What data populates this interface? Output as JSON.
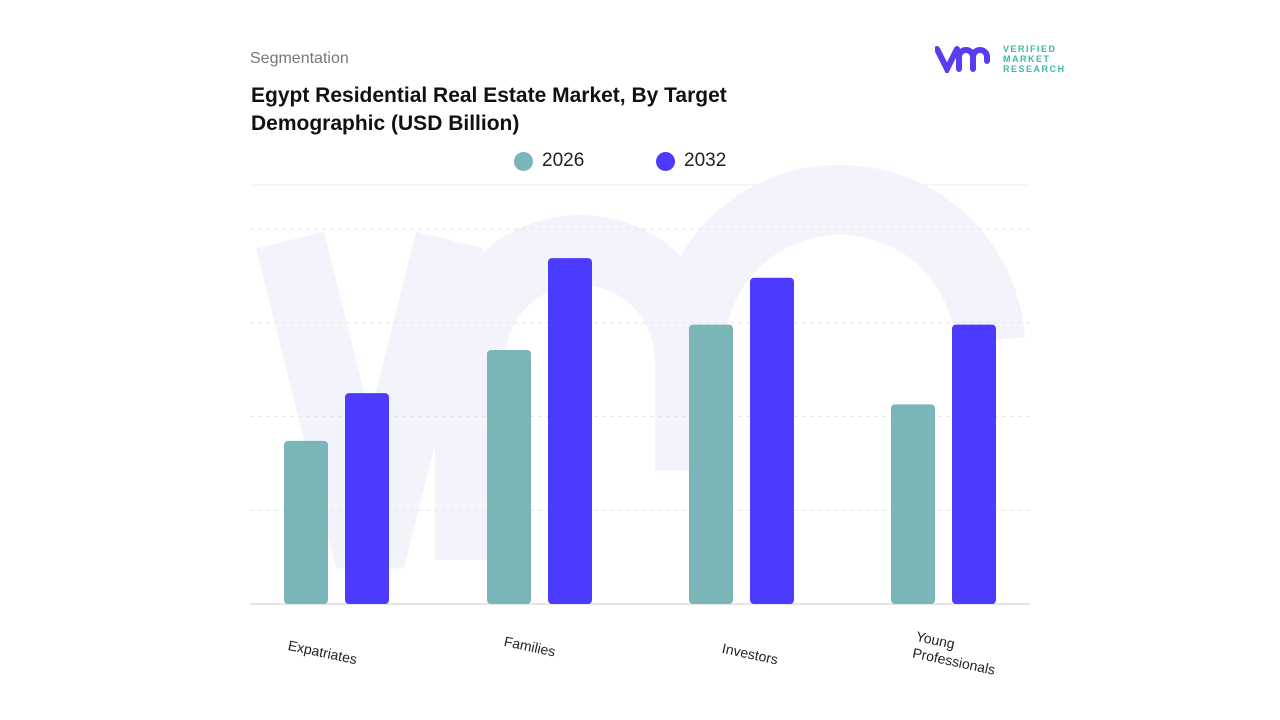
{
  "header": {
    "segment_label": "Segmentation",
    "logo_lines": [
      "VERIFIED",
      "MARKET",
      "RESEARCH"
    ]
  },
  "chart_data": {
    "type": "bar",
    "title": "Egypt Residential Real Estate Market, By Target Demographic (USD Billion)",
    "categories": [
      "Expatriates",
      "Families",
      "Investors",
      "Young Professionals"
    ],
    "series": [
      {
        "name": "2026",
        "color": "#7ab5b8",
        "values": [
          1.74,
          2.71,
          2.98,
          2.13
        ]
      },
      {
        "name": "2032",
        "color": "#4b3bff",
        "values": [
          2.25,
          3.69,
          3.48,
          2.98
        ]
      }
    ],
    "ylim": [
      0,
      4
    ],
    "grid": true,
    "legend_position": "top",
    "y_tick_labels_shown": false
  }
}
